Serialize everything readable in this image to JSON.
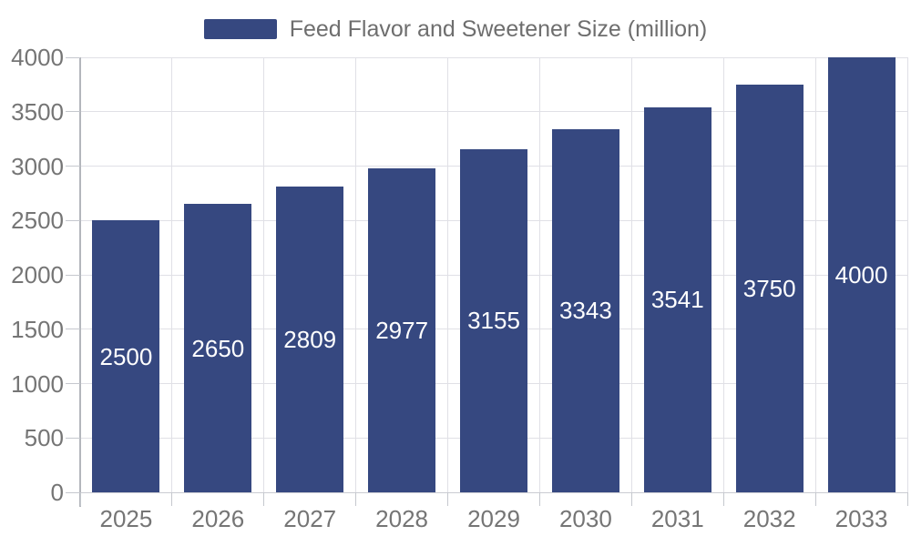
{
  "legend": {
    "label": "Feed Flavor and Sweetener Size (million)"
  },
  "chart_data": {
    "type": "bar",
    "title": "Feed Flavor and Sweetener Size (million)",
    "series_name": "Feed Flavor and Sweetener Size (million)",
    "categories": [
      "2025",
      "2026",
      "2027",
      "2028",
      "2029",
      "2030",
      "2031",
      "2032",
      "2033"
    ],
    "values": [
      2500,
      2650,
      2809,
      2977,
      3155,
      3343,
      3541,
      3750,
      4000
    ],
    "xlabel": "",
    "ylabel": "",
    "ylim": [
      0,
      4000
    ],
    "ytick_step": 500,
    "yticks": [
      0,
      500,
      1000,
      1500,
      2000,
      2500,
      3000,
      3500,
      4000
    ],
    "grid": true,
    "legend_position": "top",
    "value_labels": "inside-center"
  },
  "colors": {
    "bar": "#364880",
    "bar_value_label": "#ffffff",
    "legend_text": "#6e6e6e",
    "axis_text": "#757575",
    "axis_line": "#b3b6bc",
    "x_axis_line": "#caccd2",
    "tick": "#c5c8ce",
    "gridline": "#e0e0e6",
    "background": "#ffffff"
  }
}
